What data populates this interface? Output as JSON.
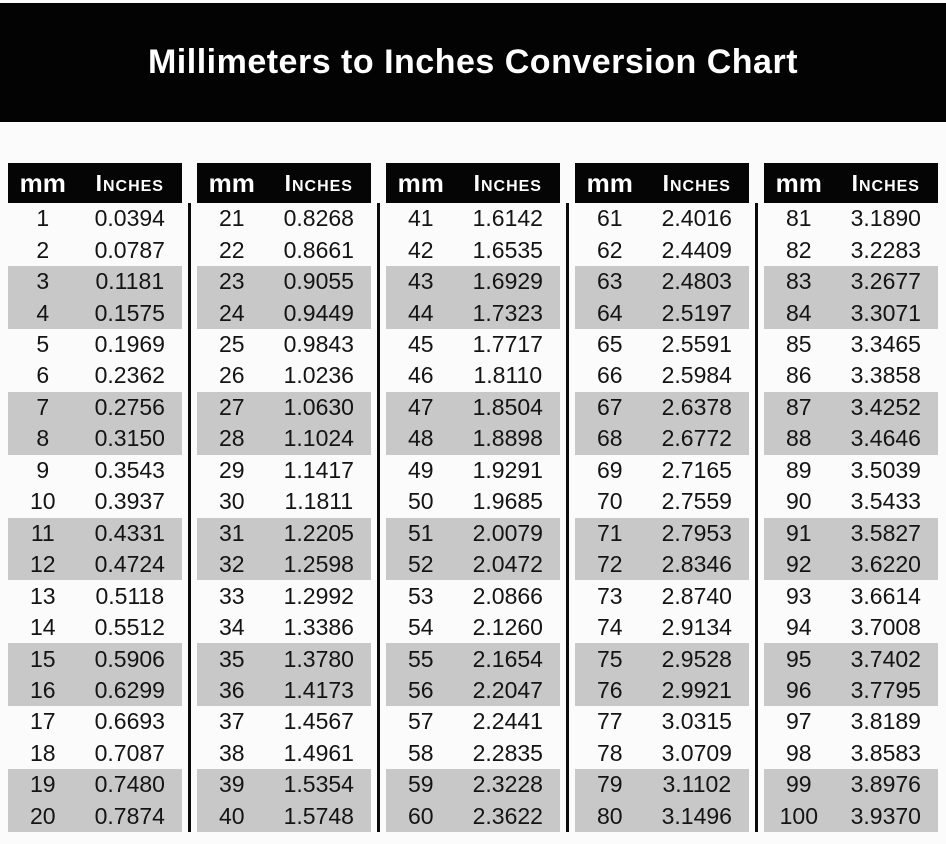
{
  "title": "Millimeters to Inches Conversion Chart",
  "colors": {
    "title_bar_bg": "#030303",
    "header_bg": "#050505",
    "header_text": "#ffffff",
    "stripe_gray": "#c8c8c8",
    "body_text": "#141414",
    "page_bg": "#fbfbfb",
    "divider": "#0a0a0a"
  },
  "chart_data": {
    "type": "table",
    "title": "Millimeters to Inches Conversion Chart",
    "columns": [
      "mm",
      "Inches"
    ],
    "layout": "5 column groups of 20 rows, rows shaded gray in alternating pairs",
    "groups": [
      {
        "mm_range": "1-20",
        "rows": [
          [
            "1",
            "0.0394"
          ],
          [
            "2",
            "0.0787"
          ],
          [
            "3",
            "0.1181"
          ],
          [
            "4",
            "0.1575"
          ],
          [
            "5",
            "0.1969"
          ],
          [
            "6",
            "0.2362"
          ],
          [
            "7",
            "0.2756"
          ],
          [
            "8",
            "0.3150"
          ],
          [
            "9",
            "0.3543"
          ],
          [
            "10",
            "0.3937"
          ],
          [
            "11",
            "0.4331"
          ],
          [
            "12",
            "0.4724"
          ],
          [
            "13",
            "0.5118"
          ],
          [
            "14",
            "0.5512"
          ],
          [
            "15",
            "0.5906"
          ],
          [
            "16",
            "0.6299"
          ],
          [
            "17",
            "0.6693"
          ],
          [
            "18",
            "0.7087"
          ],
          [
            "19",
            "0.7480"
          ],
          [
            "20",
            "0.7874"
          ]
        ]
      },
      {
        "mm_range": "21-40",
        "rows": [
          [
            "21",
            "0.8268"
          ],
          [
            "22",
            "0.8661"
          ],
          [
            "23",
            "0.9055"
          ],
          [
            "24",
            "0.9449"
          ],
          [
            "25",
            "0.9843"
          ],
          [
            "26",
            "1.0236"
          ],
          [
            "27",
            "1.0630"
          ],
          [
            "28",
            "1.1024"
          ],
          [
            "29",
            "1.1417"
          ],
          [
            "30",
            "1.1811"
          ],
          [
            "31",
            "1.2205"
          ],
          [
            "32",
            "1.2598"
          ],
          [
            "33",
            "1.2992"
          ],
          [
            "34",
            "1.3386"
          ],
          [
            "35",
            "1.3780"
          ],
          [
            "36",
            "1.4173"
          ],
          [
            "37",
            "1.4567"
          ],
          [
            "38",
            "1.4961"
          ],
          [
            "39",
            "1.5354"
          ],
          [
            "40",
            "1.5748"
          ]
        ]
      },
      {
        "mm_range": "41-60",
        "rows": [
          [
            "41",
            "1.6142"
          ],
          [
            "42",
            "1.6535"
          ],
          [
            "43",
            "1.6929"
          ],
          [
            "44",
            "1.7323"
          ],
          [
            "45",
            "1.7717"
          ],
          [
            "46",
            "1.8110"
          ],
          [
            "47",
            "1.8504"
          ],
          [
            "48",
            "1.8898"
          ],
          [
            "49",
            "1.9291"
          ],
          [
            "50",
            "1.9685"
          ],
          [
            "51",
            "2.0079"
          ],
          [
            "52",
            "2.0472"
          ],
          [
            "53",
            "2.0866"
          ],
          [
            "54",
            "2.1260"
          ],
          [
            "55",
            "2.1654"
          ],
          [
            "56",
            "2.2047"
          ],
          [
            "57",
            "2.2441"
          ],
          [
            "58",
            "2.2835"
          ],
          [
            "59",
            "2.3228"
          ],
          [
            "60",
            "2.3622"
          ]
        ]
      },
      {
        "mm_range": "61-80",
        "rows": [
          [
            "61",
            "2.4016"
          ],
          [
            "62",
            "2.4409"
          ],
          [
            "63",
            "2.4803"
          ],
          [
            "64",
            "2.5197"
          ],
          [
            "65",
            "2.5591"
          ],
          [
            "66",
            "2.5984"
          ],
          [
            "67",
            "2.6378"
          ],
          [
            "68",
            "2.6772"
          ],
          [
            "69",
            "2.7165"
          ],
          [
            "70",
            "2.7559"
          ],
          [
            "71",
            "2.7953"
          ],
          [
            "72",
            "2.8346"
          ],
          [
            "73",
            "2.8740"
          ],
          [
            "74",
            "2.9134"
          ],
          [
            "75",
            "2.9528"
          ],
          [
            "76",
            "2.9921"
          ],
          [
            "77",
            "3.0315"
          ],
          [
            "78",
            "3.0709"
          ],
          [
            "79",
            "3.1102"
          ],
          [
            "80",
            "3.1496"
          ]
        ]
      },
      {
        "mm_range": "81-100",
        "rows": [
          [
            "81",
            "3.1890"
          ],
          [
            "82",
            "3.2283"
          ],
          [
            "83",
            "3.2677"
          ],
          [
            "84",
            "3.3071"
          ],
          [
            "85",
            "3.3465"
          ],
          [
            "86",
            "3.3858"
          ],
          [
            "87",
            "3.4252"
          ],
          [
            "88",
            "3.4646"
          ],
          [
            "89",
            "3.5039"
          ],
          [
            "90",
            "3.5433"
          ],
          [
            "91",
            "3.5827"
          ],
          [
            "92",
            "3.6220"
          ],
          [
            "93",
            "3.6614"
          ],
          [
            "94",
            "3.7008"
          ],
          [
            "95",
            "3.7402"
          ],
          [
            "96",
            "3.7795"
          ],
          [
            "97",
            "3.8189"
          ],
          [
            "98",
            "3.8583"
          ],
          [
            "99",
            "3.8976"
          ],
          [
            "100",
            "3.9370"
          ]
        ]
      }
    ]
  }
}
